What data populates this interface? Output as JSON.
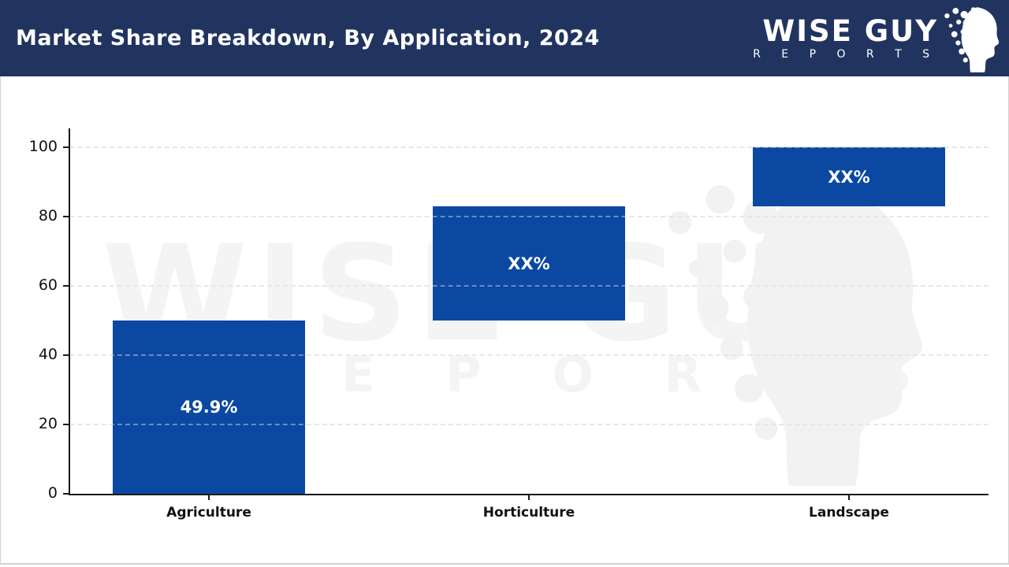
{
  "header": {
    "title": "Market Share Breakdown, By Application, 2024",
    "bg_color": "#213460",
    "logo": {
      "line1": "WISE GUY",
      "line2": "R E P O R T S"
    }
  },
  "watermark": {
    "line1": "WISE GUY",
    "line2": "R E P O R T S"
  },
  "chart_data": {
    "type": "bar",
    "subtype": "floating-segment-waterfall",
    "title": "Market Share Breakdown, By Application, 2024",
    "categories": [
      "Agriculture",
      "Horticulture",
      "Landscape"
    ],
    "bars": [
      {
        "category": "Agriculture",
        "base": 0,
        "top": 49.9,
        "label": "49.9%"
      },
      {
        "category": "Horticulture",
        "base": 49.9,
        "top": 82.9,
        "label": "XX%"
      },
      {
        "category": "Landscape",
        "base": 82.9,
        "top": 100,
        "label": "XX%"
      }
    ],
    "xlabel": "",
    "ylabel": "",
    "ylim": [
      0,
      100
    ],
    "yticks": [
      0,
      20,
      40,
      60,
      80,
      100
    ],
    "grid": "horizontal-dashed",
    "legend": null,
    "bar_color": "#0A48A2",
    "bar_label_color": "#ffffff",
    "axis_color": "#1a1a1a"
  }
}
